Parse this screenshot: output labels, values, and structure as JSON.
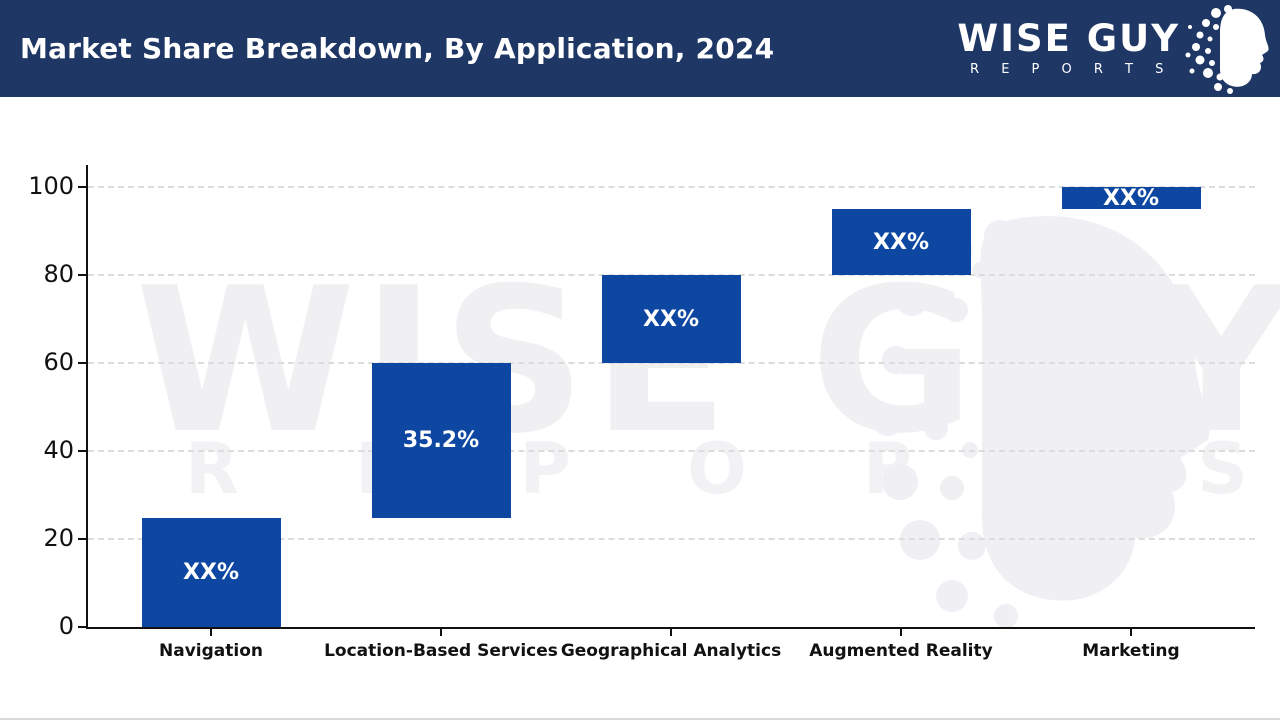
{
  "header": {
    "title": "Market Share Breakdown, By Application, 2024",
    "logo": {
      "line1": "WISE GUY",
      "line2": "R E P O R T S"
    },
    "bg_color": "#1f3765"
  },
  "watermark": {
    "line1": "WISE GUY",
    "line2": "R E P O R T S"
  },
  "chart_data": {
    "type": "bar",
    "subtype": "waterfall",
    "title": "Market Share Breakdown, By Application, 2024",
    "categories": [
      "Navigation",
      "Location-Based Services",
      "Geographical Analytics",
      "Augmented Reality",
      "Marketing"
    ],
    "series": [
      {
        "name": "Market Share %",
        "values": [
          24.8,
          35.2,
          20,
          15,
          5
        ]
      }
    ],
    "cumulative_start": [
      0,
      24.8,
      60,
      80,
      95
    ],
    "cumulative_end": [
      24.8,
      60,
      80,
      95,
      100
    ],
    "bar_labels": [
      "XX%",
      "35.2%",
      "XX%",
      "XX%",
      "XX%"
    ],
    "xlabel": "",
    "ylabel": "",
    "yticks": [
      0,
      20,
      40,
      60,
      80,
      100
    ],
    "ylim": [
      0,
      105
    ],
    "grid": "horizontal-dashed",
    "legend": "none",
    "bar_color": "#0d47a1",
    "grid_color": "#dcdcdc",
    "axis_color": "#111111"
  }
}
